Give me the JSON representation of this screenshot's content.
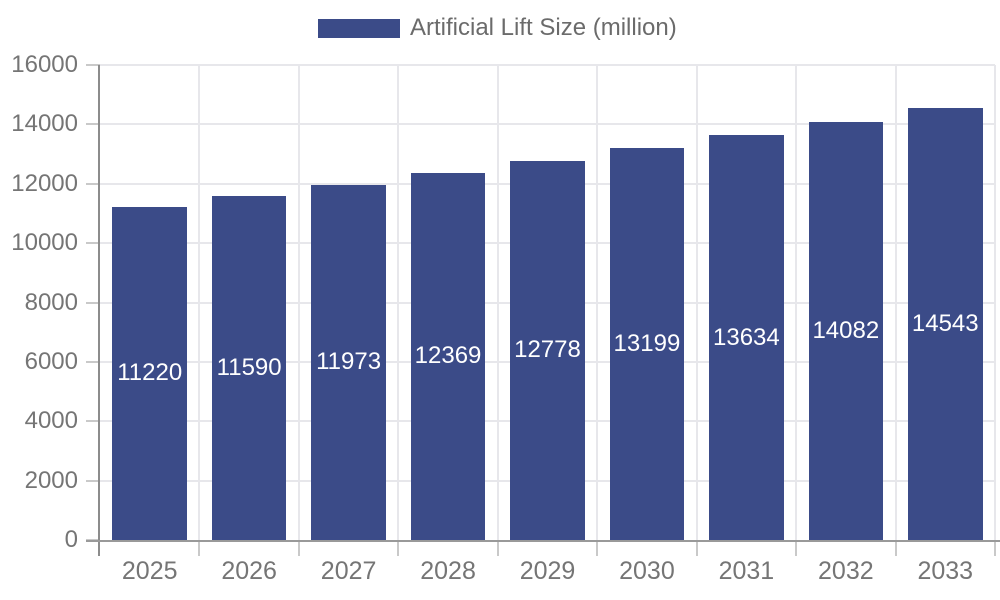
{
  "chart_data": {
    "type": "bar",
    "title": "",
    "legend": "Artificial Lift Size (million)",
    "categories": [
      "2025",
      "2026",
      "2027",
      "2028",
      "2029",
      "2030",
      "2031",
      "2032",
      "2033"
    ],
    "series": [
      {
        "name": "Artificial Lift Size (million)",
        "values": [
          11220,
          11590,
          11973,
          12369,
          12778,
          13199,
          13634,
          14082,
          14543
        ]
      }
    ],
    "ylabel": "",
    "xlabel": "",
    "ylim": [
      0,
      16000
    ],
    "ytick_step": 2000,
    "ytick_labels": [
      "0",
      "2000",
      "4000",
      "6000",
      "8000",
      "10000",
      "12000",
      "14000",
      "16000"
    ],
    "grid": true,
    "legend_position": "top-center",
    "data_labels_inside": true,
    "colors": {
      "bar": "#3B4B88",
      "bar_label_text": "#FFFFFF",
      "axis_tick_text": "#757575",
      "legend_text": "#6B6B6B",
      "grid_line": "#E7E7EB",
      "axis_line": "#999999",
      "y_axis_line": "#8C8C8C",
      "tick_mark": "#C9C9C9",
      "background": "#FFFFFF"
    }
  }
}
